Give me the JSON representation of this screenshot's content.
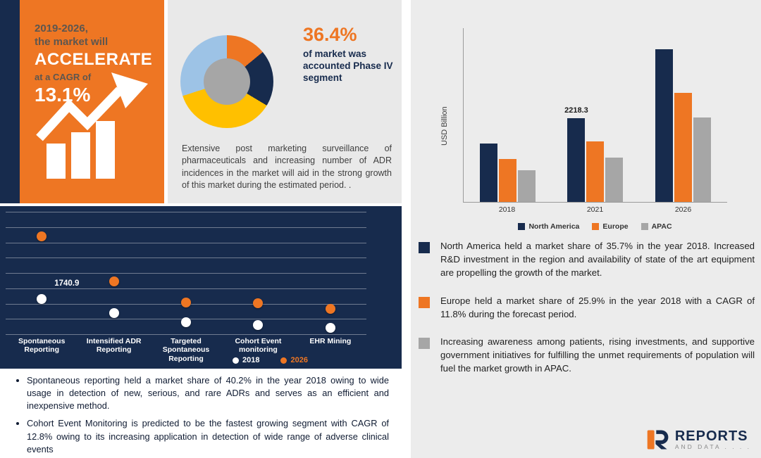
{
  "colors": {
    "orange": "#ee7623",
    "navy": "#172b4d",
    "panel_gray": "#ececec",
    "box_gray": "#e9e9e9",
    "bar_gray": "#a6a6a6",
    "yellow": "#ffc000",
    "light_blue": "#9dc3e6",
    "white": "#ffffff"
  },
  "cagr_box": {
    "line1": "2019-2026,",
    "line2": "the market will",
    "accelerate": "ACCELERATE",
    "line4": "at a CAGR of",
    "cagr": "13.1%"
  },
  "phase_box": {
    "stat": "36.4%",
    "stat_caption": "of market was accounted Phase IV segment",
    "paragraph": "Extensive post marketing surveillance of pharmaceuticals and increasing number of ADR incidences in the market will aid in the strong growth of this market during the estimated period. ."
  },
  "segment_notes": [
    "Spontaneous reporting held a market share of 40.2% in the year 2018 owing to wide usage in detection of new, serious, and rare ADRs and serves as an efficient and inexpensive method.",
    "Cohort Event Monitoring is predicted to be the fastest growing segment with CAGR of 12.8% owing to its increasing application in detection of wide range of adverse clinical events"
  ],
  "right_panel": {
    "bullets": [
      {
        "color": "#172b4d",
        "text": "North America held a market share of 35.7% in the year 2018. Increased R&D investment in the region and availability of state of the art equipment are propelling the growth of the market."
      },
      {
        "color": "#ee7623",
        "text": "Europe held a market share of 25.9% in the year 2018 with a CAGR of 11.8% during the forecast period."
      },
      {
        "color": "#a6a6a6",
        "text": "Increasing awareness among patients, rising investments, and supportive government initiatives for fulfilling the unmet requirements of population  will fuel the market growth in APAC."
      }
    ],
    "logo": {
      "brand": "REPORTS",
      "sub": "AND DATA",
      "dots": ". . . ."
    }
  },
  "chart_data": [
    {
      "id": "phase-donut",
      "type": "pie",
      "hole_color": "#a6a6a6",
      "highlight": {
        "value": 36.4,
        "label": "Phase IV"
      },
      "slices": [
        {
          "label": "unlabeled",
          "value": 14,
          "color": "#ee7623",
          "estimated": true
        },
        {
          "label": "unlabeled",
          "value": 19.6,
          "color": "#172b4d",
          "estimated": true
        },
        {
          "label": "Phase IV",
          "value": 36.4,
          "color": "#ffc000",
          "estimated": false
        },
        {
          "label": "unlabeled",
          "value": 30,
          "color": "#9dc3e6",
          "estimated": true
        }
      ]
    },
    {
      "id": "segment-dot-chart",
      "type": "scatter",
      "categories": [
        "Spontaneous Reporting",
        "Intensified ADR Reporting",
        "Targeted Spontaneous Reporting",
        "Cohort Event monitoring",
        "EHR Mining"
      ],
      "series": [
        {
          "name": "2018",
          "color": "#ffffff",
          "values": [
            1740.9,
            1020,
            570,
            450,
            300
          ]
        },
        {
          "name": "2026",
          "color": "#ee7623",
          "values": [
            4800,
            2600,
            1560,
            1530,
            1230
          ]
        }
      ],
      "ylim": [
        0,
        6000
      ],
      "gridlines": 9,
      "grid": true,
      "legend_position": "bottom-right",
      "annotations": [
        {
          "series": "2018",
          "category_index": 0,
          "text": "1740.9"
        }
      ],
      "note": "only 1740.9 labeled on chart; other values estimated from gridlines"
    },
    {
      "id": "regional-bar-chart",
      "type": "bar",
      "ylabel": "USD Billion",
      "categories": [
        "2018",
        "2021",
        "2026"
      ],
      "series": [
        {
          "name": "North America",
          "color": "#172b4d",
          "values": [
            1540,
            2218.3,
            4040
          ]
        },
        {
          "name": "Europe",
          "color": "#ee7623",
          "values": [
            1140,
            1610,
            2880
          ]
        },
        {
          "name": "APAC",
          "color": "#a6a6a6",
          "values": [
            830,
            1180,
            2240
          ]
        }
      ],
      "ylim": [
        0,
        4600
      ],
      "legend_position": "bottom",
      "bar_labels": [
        {
          "series_index": 0,
          "category_index": 1,
          "text": "2218.3"
        }
      ],
      "note": "only 2218.3 labeled on chart; other values estimated from bar heights"
    }
  ]
}
